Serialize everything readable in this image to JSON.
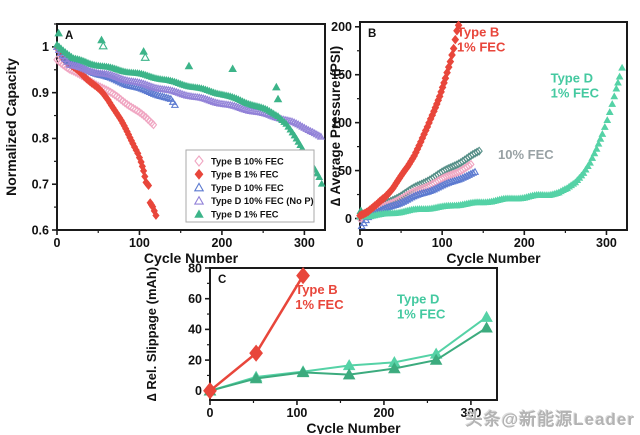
{
  "watermark": {
    "text": "头条@新能源Leader"
  },
  "chart_data": [
    {
      "id": "A",
      "panel_label": "A",
      "type": "scatter",
      "xlabel": "Cycle Number",
      "ylabel": "Normalized Capacity",
      "xlim": [
        0,
        325
      ],
      "ylim": [
        0.6,
        1.05
      ],
      "xticks": [
        [
          0,
          "0"
        ],
        [
          100,
          "100"
        ],
        [
          200,
          "200"
        ],
        [
          300,
          "300"
        ]
      ],
      "yticks": [
        [
          1,
          "1"
        ],
        [
          0.9,
          "0.9"
        ],
        [
          0.8,
          "0.8"
        ],
        [
          0.7,
          "0.7"
        ],
        [
          0.6,
          "0.6"
        ]
      ],
      "xminor": 50,
      "yminor": 0.05,
      "grid": false,
      "legend": {
        "position": "bottom-right",
        "entries": [
          {
            "marker": "diamond-open",
            "color": "#f0a6c2",
            "label": "Type B 10% FEC"
          },
          {
            "marker": "diamond-filled",
            "color": "#e8463b",
            "label": "Type B 1% FEC"
          },
          {
            "marker": "triangle-open",
            "color": "#5c7ad0",
            "label": "Type D 10% FEC"
          },
          {
            "marker": "triangle-open",
            "color": "#9282d8",
            "label": "Type D 10% FEC (No P)"
          },
          {
            "marker": "triangle-filled",
            "color": "#3cb489",
            "label": "Type D 1% FEC"
          }
        ]
      },
      "series": [
        {
          "name": "Type B 10% FEC",
          "marker": "diamond-open",
          "color": "#f0a6c2",
          "dense": true,
          "step": 2.5,
          "size": 3,
          "points": [
            [
              0,
              0.972
            ],
            [
              15,
              0.952
            ],
            [
              30,
              0.936
            ],
            [
              45,
              0.921
            ],
            [
              60,
              0.905
            ],
            [
              75,
              0.889
            ],
            [
              90,
              0.869
            ],
            [
              100,
              0.856
            ],
            [
              108,
              0.845
            ],
            [
              117,
              0.831
            ]
          ]
        },
        {
          "name": "Type B 1% FEC",
          "marker": "diamond-filled",
          "color": "#e8463b",
          "dense": true,
          "step": 2,
          "size": 3.2,
          "points": [
            [
              0,
              1.0
            ],
            [
              8,
              0.975
            ],
            [
              18,
              0.958
            ],
            [
              28,
              0.944
            ],
            [
              38,
              0.928
            ],
            [
              48,
              0.912
            ],
            [
              55,
              0.9
            ],
            [
              62,
              0.885
            ],
            [
              70,
              0.862
            ],
            [
              78,
              0.838
            ],
            [
              85,
              0.815
            ],
            [
              92,
              0.79
            ],
            [
              98,
              0.768
            ],
            [
              102,
              0.748
            ],
            [
              105,
              0.728
            ],
            [
              108,
              0.703
            ],
            [
              111,
              0.697
            ],
            [
              113,
              0.66
            ],
            [
              116,
              0.652
            ],
            [
              118,
              0.643
            ],
            [
              120,
              0.633
            ]
          ]
        },
        {
          "name": "Type D 10% FEC",
          "marker": "triangle-open",
          "color": "#5c7ad0",
          "dense": true,
          "step": 2.5,
          "size": 3,
          "points": [
            [
              0,
              1.0
            ],
            [
              12,
              0.972
            ],
            [
              25,
              0.958
            ],
            [
              40,
              0.947
            ],
            [
              55,
              0.938
            ],
            [
              70,
              0.928
            ],
            [
              85,
              0.918
            ],
            [
              100,
              0.909
            ],
            [
              115,
              0.9
            ],
            [
              128,
              0.892
            ],
            [
              138,
              0.885
            ],
            [
              143,
              0.872
            ]
          ]
        },
        {
          "name": "Type D 10% FEC (No P)",
          "marker": "triangle-open",
          "color": "#9282d8",
          "dense": true,
          "step": 2.5,
          "size": 3,
          "points": [
            [
              0,
              1.0
            ],
            [
              15,
              0.962
            ],
            [
              35,
              0.95
            ],
            [
              60,
              0.94
            ],
            [
              85,
              0.928
            ],
            [
              110,
              0.916
            ],
            [
              135,
              0.905
            ],
            [
              160,
              0.894
            ],
            [
              185,
              0.883
            ],
            [
              210,
              0.872
            ],
            [
              235,
              0.861
            ],
            [
              255,
              0.852
            ],
            [
              270,
              0.845
            ],
            [
              285,
              0.836
            ],
            [
              300,
              0.824
            ],
            [
              310,
              0.815
            ],
            [
              320,
              0.803
            ]
          ]
        },
        {
          "name": "Type D 1% FEC",
          "marker": "triangle-filled",
          "color": "#3cb489",
          "dense": true,
          "step": 2.5,
          "size": 3.2,
          "points": [
            [
              0,
              1.005
            ],
            [
              20,
              0.975
            ],
            [
              40,
              0.964
            ],
            [
              60,
              0.956
            ],
            [
              80,
              0.948
            ],
            [
              100,
              0.941
            ],
            [
              120,
              0.933
            ],
            [
              140,
              0.924
            ],
            [
              160,
              0.915
            ],
            [
              180,
              0.906
            ],
            [
              200,
              0.897
            ],
            [
              220,
              0.885
            ],
            [
              240,
              0.872
            ],
            [
              255,
              0.862
            ],
            [
              268,
              0.85
            ],
            [
              278,
              0.832
            ],
            [
              288,
              0.805
            ],
            [
              295,
              0.785
            ],
            [
              302,
              0.765
            ],
            [
              308,
              0.748
            ],
            [
              313,
              0.732
            ],
            [
              318,
              0.715
            ],
            [
              321,
              0.7
            ]
          ]
        },
        {
          "name": "Type D 1% FEC (check-up)",
          "marker": "triangle-filled",
          "color": "#3cb489",
          "size": 3.6,
          "points": [
            [
              2,
              1.03
            ],
            [
              54,
              1.015
            ],
            [
              105,
              0.99
            ],
            [
              160,
              0.958
            ],
            [
              213,
              0.952
            ],
            [
              266,
              0.912
            ],
            [
              268,
              0.886
            ]
          ]
        },
        {
          "name": "Type D 10% FEC (check-up)",
          "marker": "triangle-open",
          "color": "#3cb489",
          "size": 3.6,
          "points": [
            [
              56,
              1.002
            ],
            [
              107,
              0.977
            ]
          ]
        }
      ],
      "annotations": []
    },
    {
      "id": "B",
      "panel_label": "B",
      "type": "scatter",
      "xlabel": "Cycle Number",
      "ylabel": "∆ Average Pressure (PSI)",
      "xlim": [
        0,
        325
      ],
      "ylim": [
        -12,
        205
      ],
      "xticks": [
        [
          0,
          "0"
        ],
        [
          100,
          "100"
        ],
        [
          200,
          "200"
        ],
        [
          300,
          "300"
        ]
      ],
      "yticks": [
        [
          0,
          "0"
        ],
        [
          50,
          "50"
        ],
        [
          100,
          "100"
        ],
        [
          150,
          "150"
        ],
        [
          200,
          "200"
        ]
      ],
      "xminor": 50,
      "yminor": 25,
      "grid": false,
      "series": [
        {
          "name": "10% FEC (teal)",
          "marker": "diamond-open",
          "color": "#568f88",
          "dense": true,
          "step": 2.5,
          "size": 3,
          "points": [
            [
              0,
              0
            ],
            [
              25,
              12
            ],
            [
              50,
              24
            ],
            [
              75,
              36
            ],
            [
              100,
              48
            ],
            [
              125,
              60
            ],
            [
              145,
              70
            ]
          ]
        },
        {
          "name": "10% FEC (pink)",
          "marker": "diamond-open",
          "color": "#f0a6c2",
          "dense": true,
          "step": 2.5,
          "size": 3,
          "points": [
            [
              0,
              0
            ],
            [
              25,
              10
            ],
            [
              50,
              21
            ],
            [
              75,
              31
            ],
            [
              100,
              41
            ],
            [
              120,
              49
            ],
            [
              135,
              56
            ]
          ]
        },
        {
          "name": "10% FEC (blue)",
          "marker": "triangle-open",
          "color": "#5c7ad0",
          "dense": true,
          "step": 2.5,
          "size": 3,
          "points": [
            [
              2,
              -8
            ],
            [
              10,
              2
            ],
            [
              25,
              8
            ],
            [
              50,
              17
            ],
            [
              75,
              26
            ],
            [
              100,
              34
            ],
            [
              125,
              43
            ],
            [
              140,
              48
            ]
          ]
        },
        {
          "name": "Type D 1% FEC",
          "marker": "triangle-filled",
          "color": "#55d2a6",
          "dense": true,
          "step": 2.5,
          "size": 3.2,
          "points": [
            [
              0,
              2
            ],
            [
              25,
              4
            ],
            [
              50,
              7
            ],
            [
              75,
              10
            ],
            [
              100,
              12
            ],
            [
              125,
              15
            ],
            [
              150,
              17
            ],
            [
              175,
              20
            ],
            [
              200,
              22
            ],
            [
              215,
              24
            ],
            [
              230,
              25
            ],
            [
              242,
              27
            ],
            [
              252,
              31
            ],
            [
              262,
              38
            ],
            [
              272,
              48
            ],
            [
              280,
              58
            ],
            [
              288,
              72
            ],
            [
              295,
              88
            ],
            [
              301,
              103
            ],
            [
              307,
              120
            ],
            [
              312,
              136
            ],
            [
              316,
              148
            ],
            [
              319,
              157
            ]
          ]
        },
        {
          "name": "Type D 1% FEC (start)",
          "marker": "triangle-filled",
          "color": "#3cb489",
          "size": 3.6,
          "points": [
            [
              1,
              8
            ]
          ]
        },
        {
          "name": "Type B 1% FEC",
          "marker": "diamond-filled",
          "color": "#e8463b",
          "dense": true,
          "step": 2,
          "size": 3.4,
          "points": [
            [
              0,
              3
            ],
            [
              10,
              8
            ],
            [
              20,
              14
            ],
            [
              30,
              22
            ],
            [
              40,
              32
            ],
            [
              50,
              44
            ],
            [
              58,
              54
            ],
            [
              66,
              66
            ],
            [
              74,
              80
            ],
            [
              82,
              95
            ],
            [
              90,
              112
            ],
            [
              97,
              128
            ],
            [
              104,
              146
            ],
            [
              110,
              163
            ],
            [
              114,
              177
            ],
            [
              118,
              196
            ],
            [
              120,
              202
            ]
          ]
        }
      ],
      "annotations": [
        {
          "text": [
            "Type B",
            "1% FEC"
          ],
          "color": "#e8463b",
          "x": 118,
          "y": 190
        },
        {
          "text": [
            "Type D",
            "1% FEC"
          ],
          "color": "#44c9a0",
          "x": 232,
          "y": 142
        },
        {
          "text": [
            "10% FEC"
          ],
          "color": "#98a1a4",
          "x": 168,
          "y": 62
        }
      ]
    },
    {
      "id": "C",
      "panel_label": "C",
      "type": "line",
      "xlabel": "Cycle Number",
      "ylabel": "∆ Rel. Slippage (mAh)",
      "xlim": [
        0,
        330
      ],
      "ylim": [
        -6,
        80
      ],
      "xticks": [
        [
          0,
          "0"
        ],
        [
          100,
          "100"
        ],
        [
          200,
          "200"
        ],
        [
          300,
          "300"
        ]
      ],
      "yticks": [
        [
          0,
          "0"
        ],
        [
          20,
          "20"
        ],
        [
          40,
          "40"
        ],
        [
          60,
          "60"
        ],
        [
          80,
          "80"
        ]
      ],
      "xminor": 50,
      "yminor": 10,
      "grid": false,
      "series": [
        {
          "name": "Type D 1% FEC (cell 1)",
          "marker": "triangle-filled",
          "color": "#55d2a6",
          "line": true,
          "lineWidth": 2,
          "size": 5.5,
          "points": [
            [
              0,
              0
            ],
            [
              53,
              9
            ],
            [
              107,
              12.5
            ],
            [
              160,
              16.5
            ],
            [
              212,
              18.5
            ],
            [
              260,
              24
            ],
            [
              318,
              48
            ]
          ]
        },
        {
          "name": "Type D 1% FEC (cell 2)",
          "marker": "triangle-filled",
          "color": "#3cab7e",
          "line": true,
          "lineWidth": 2,
          "size": 5.5,
          "points": [
            [
              0,
              0
            ],
            [
              53,
              8
            ],
            [
              107,
              12
            ],
            [
              160,
              10.5
            ],
            [
              212,
              14.5
            ],
            [
              260,
              20
            ],
            [
              318,
              41
            ]
          ]
        },
        {
          "name": "Type B 1% FEC",
          "marker": "diamond-filled",
          "color": "#e8463b",
          "line": true,
          "lineWidth": 2.5,
          "size": 6.5,
          "points": [
            [
              0,
              0
            ],
            [
              53,
              24.5
            ],
            [
              107,
              75
            ]
          ]
        }
      ],
      "annotations": [
        {
          "text": [
            "Type B",
            "1% FEC"
          ],
          "color": "#e8463b",
          "x": 98,
          "y": 63
        },
        {
          "text": [
            "Type D",
            "1% FEC"
          ],
          "color": "#44c9a0",
          "x": 215,
          "y": 57
        }
      ]
    }
  ]
}
